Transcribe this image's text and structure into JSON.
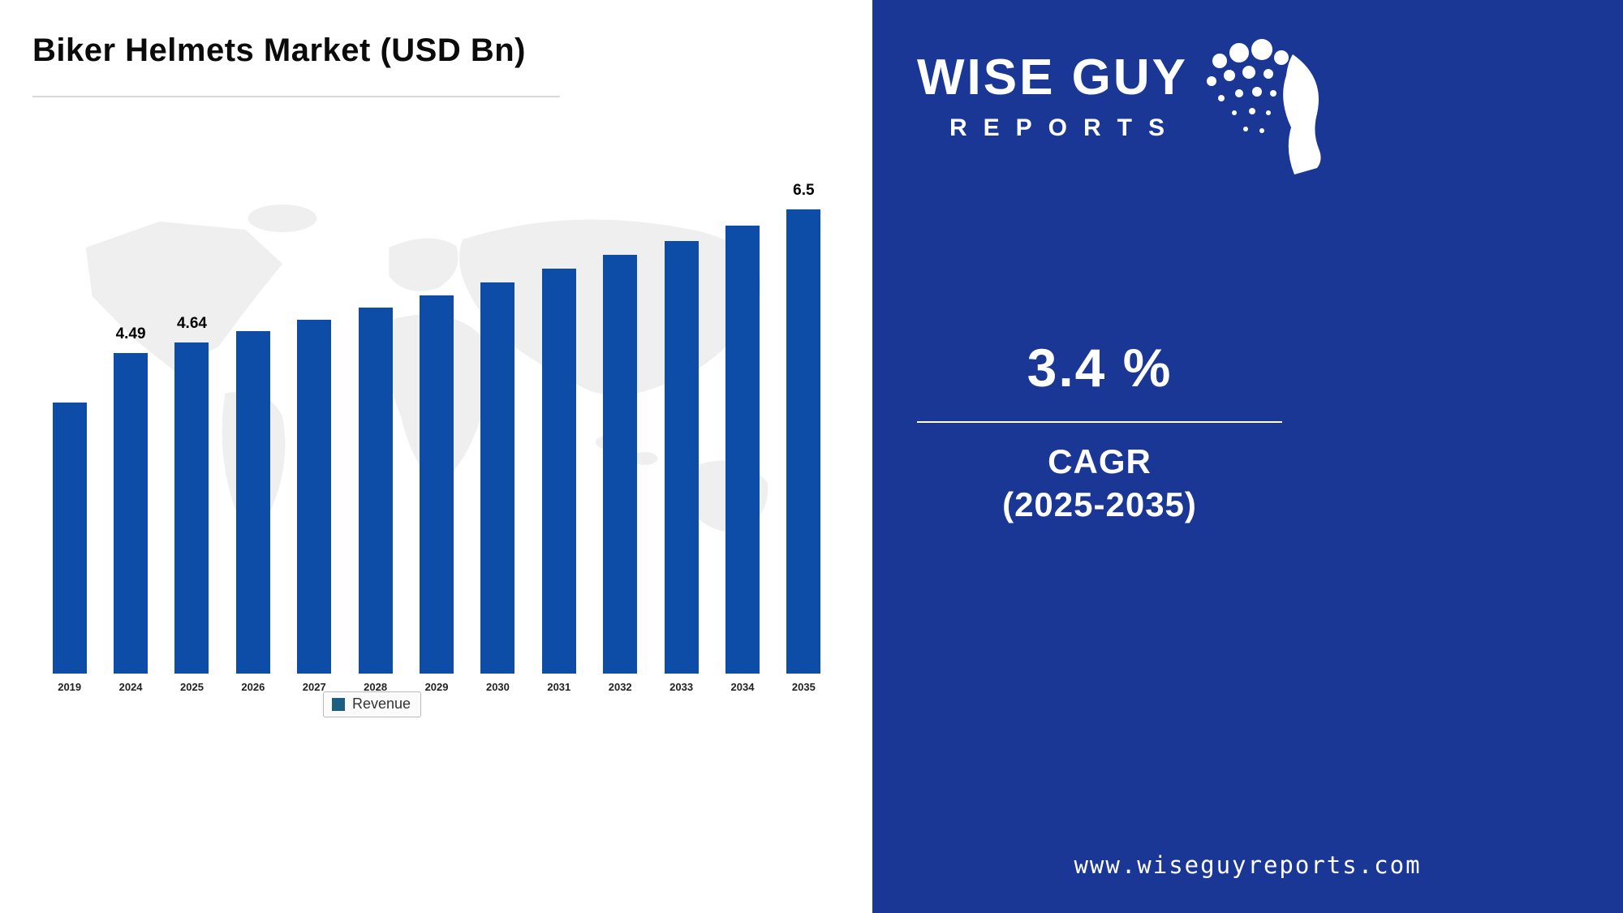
{
  "title": "Biker Helmets Market (USD Bn)",
  "chart_data": {
    "type": "bar",
    "title": "Biker Helmets Market (USD Bn)",
    "categories": [
      "2019",
      "2024",
      "2025",
      "2026",
      "2027",
      "2028",
      "2029",
      "2030",
      "2031",
      "2032",
      "2033",
      "2034",
      "2035"
    ],
    "values": [
      3.8,
      4.49,
      4.64,
      4.8,
      4.96,
      5.13,
      5.3,
      5.48,
      5.67,
      5.86,
      6.06,
      6.27,
      6.5
    ],
    "data_labels": {
      "1": "4.49",
      "2": "4.64",
      "12": "6.5"
    },
    "xlabel": "",
    "ylabel": "",
    "ylim": [
      0,
      7
    ],
    "grid": false,
    "legend_position": "bottom",
    "bar_color": "#0d4da8",
    "legend": [
      {
        "label": "Revenue",
        "color": "#1b5e82"
      }
    ]
  },
  "sidebar": {
    "bg_color": "#1a3796",
    "logo_line1": "WISE GUY",
    "logo_line2": "REPORTS",
    "cagr_value": "3.4 %",
    "cagr_label1": "CAGR",
    "cagr_label2": "(2025-2035)",
    "website": "www.wiseguyreports.com"
  }
}
